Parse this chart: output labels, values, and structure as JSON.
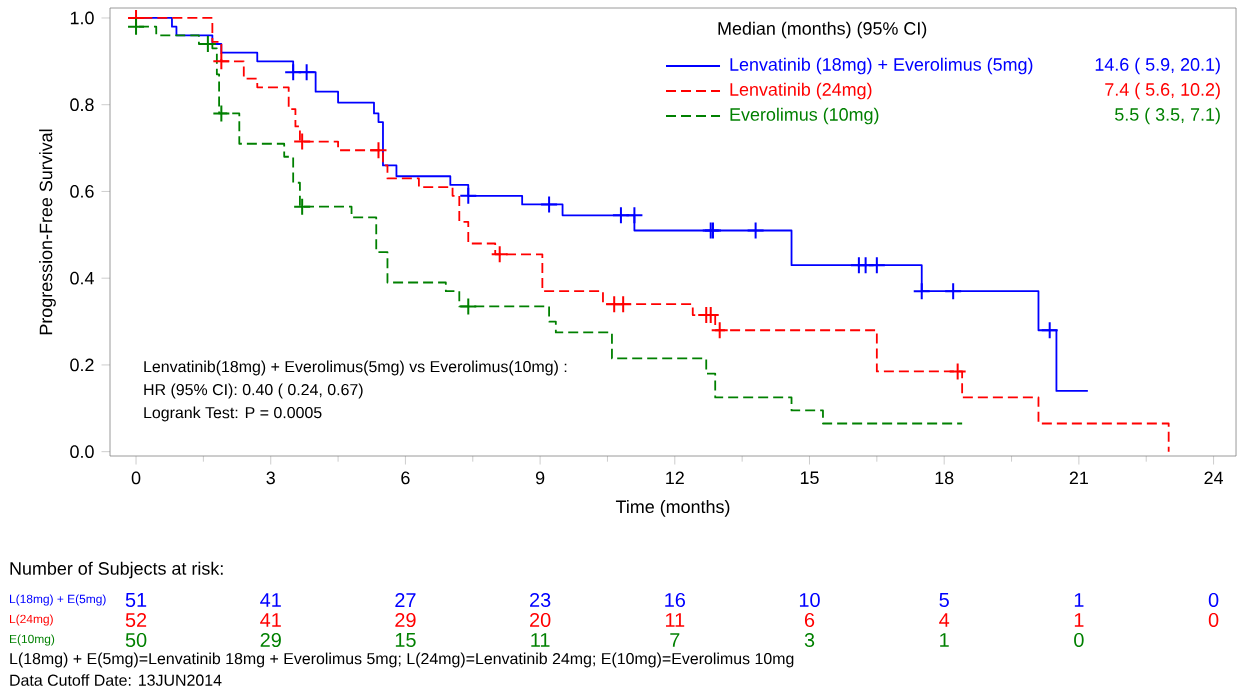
{
  "chart_data": {
    "type": "step",
    "xlabel": "Time (months)",
    "ylabel": "Progression-Free Survival",
    "legend_title": "Median (months) (95% CI)",
    "legend": "top right",
    "xlim": [
      -0.58,
      24.5
    ],
    "ylim": [
      -0.01,
      1.023
    ],
    "xticks": [
      0,
      3,
      6,
      9,
      12,
      15,
      18,
      21,
      24
    ],
    "yticks": [
      {
        "value": 0,
        "label": "0.0"
      },
      {
        "value": 0.2,
        "label": "0.2"
      },
      {
        "value": 0.4,
        "label": "0.4"
      },
      {
        "value": 0.6,
        "label": "0.6"
      },
      {
        "value": 0.8,
        "label": "0.8"
      },
      {
        "value": 1,
        "label": "1.0"
      }
    ],
    "series": [
      {
        "name": "Lenvatinib (18mg) + Everolimus (5mg)",
        "color": "#0000ff",
        "line_style": "solid",
        "x": [
          0,
          0.8,
          0.9,
          1.7,
          1.9,
          2.7,
          3.5,
          4.0,
          4.5,
          5.3,
          5.4,
          5.5,
          5.8,
          7.0,
          7.4,
          8.6,
          9.5,
          11.1,
          14.6,
          17.5,
          20.1,
          20.5,
          21.2
        ],
        "values": [
          1.0,
          0.98,
          0.96,
          0.94,
          0.92,
          0.9,
          0.875,
          0.83,
          0.805,
          0.78,
          0.76,
          0.66,
          0.635,
          0.615,
          0.59,
          0.57,
          0.545,
          0.51,
          0.43,
          0.37,
          0.28,
          0.14,
          0.14
        ]
      },
      {
        "name": "Lenvatinib (24mg)",
        "color": "#ff0000",
        "line_style": "dashed",
        "x": [
          0,
          1.7,
          1.9,
          2.4,
          2.7,
          3.4,
          3.55,
          3.65,
          4.5,
          5.5,
          5.6,
          6.3,
          7.05,
          7.2,
          7.4,
          8.0,
          9.05,
          10.4,
          12.4,
          12.9,
          16.5,
          18.4,
          20.1,
          23.0
        ],
        "values": [
          1.0,
          0.945,
          0.9,
          0.86,
          0.84,
          0.79,
          0.75,
          0.715,
          0.695,
          0.66,
          0.63,
          0.61,
          0.59,
          0.53,
          0.48,
          0.455,
          0.37,
          0.34,
          0.315,
          0.28,
          0.185,
          0.125,
          0.065,
          0
        ]
      },
      {
        "name": "Everolimus (10mg)",
        "color": "#008000",
        "line_style": "dashed",
        "x": [
          0,
          0.45,
          1.4,
          1.7,
          1.8,
          1.85,
          2.3,
          3.3,
          3.5,
          3.65,
          4.8,
          5.35,
          5.6,
          6.9,
          7.2,
          9.2,
          9.35,
          10.6,
          12.7,
          12.9,
          14.6,
          15.3,
          18.4
        ],
        "values": [
          0.98,
          0.96,
          0.94,
          0.93,
          0.87,
          0.78,
          0.71,
          0.68,
          0.62,
          0.565,
          0.54,
          0.46,
          0.39,
          0.37,
          0.335,
          0.3,
          0.275,
          0.215,
          0.18,
          0.125,
          0.095,
          0.065,
          0.065
        ]
      },
      {
        "type": "scatter",
        "marker": "cross",
        "color": "#0000ff",
        "x": [
          3.5,
          3.8,
          7.4,
          9.2,
          10.8,
          11.1,
          12.8,
          12.85,
          13.8,
          16.1,
          16.25,
          16.5,
          17.5,
          18.2,
          20.35
        ],
        "values": [
          0.875,
          0.875,
          0.59,
          0.57,
          0.545,
          0.545,
          0.51,
          0.51,
          0.51,
          0.43,
          0.43,
          0.43,
          0.37,
          0.37,
          0.28
        ]
      },
      {
        "type": "scatter",
        "marker": "cross",
        "color": "#ff0000",
        "x": [
          0,
          1.9,
          3.7,
          5.4,
          8.1,
          10.65,
          10.85,
          12.7,
          12.8,
          13.0,
          18.3
        ],
        "values": [
          1.0,
          0.9,
          0.715,
          0.695,
          0.455,
          0.34,
          0.34,
          0.315,
          0.315,
          0.28,
          0.185
        ]
      },
      {
        "type": "scatter",
        "marker": "cross",
        "color": "#008000",
        "x": [
          0,
          1.6,
          1.9,
          3.7,
          7.4
        ],
        "values": [
          0.98,
          0.94,
          0.78,
          0.565,
          0.335
        ]
      }
    ],
    "annotations": [
      "14.6 ( 5.9, 20.1)",
      "7.4 ( 5.6, 10.2)",
      "5.5 ( 3.5, 7.1)",
      "Lenvatinib(18mg) + Everolimus(5mg) vs Everolimus(10mg) :",
      "HR (95% CI): 0.40 ( 0.24, 0.67)",
      "Logrank Test: P = 0.0005",
      "Number of Subjects at risk:",
      "L(18mg) + E(5mg)",
      "L(24mg)",
      "E(10mg)",
      "51",
      "41",
      "27",
      "23",
      "16",
      "10",
      "5",
      "1",
      "0",
      "52",
      "41",
      "29",
      "20",
      "11",
      "6",
      "4",
      "1",
      "0",
      "50",
      "29",
      "15",
      "11",
      "7",
      "3",
      "1",
      "0",
      "L(18mg) + E(5mg)=Lenvatinib 18mg + Everolimus 5mg; L(24mg)=Lenvatinib 24mg; E(10mg)=Everolimus 10mg",
      "Data Cutoff Date: 13JUN2014"
    ]
  }
}
